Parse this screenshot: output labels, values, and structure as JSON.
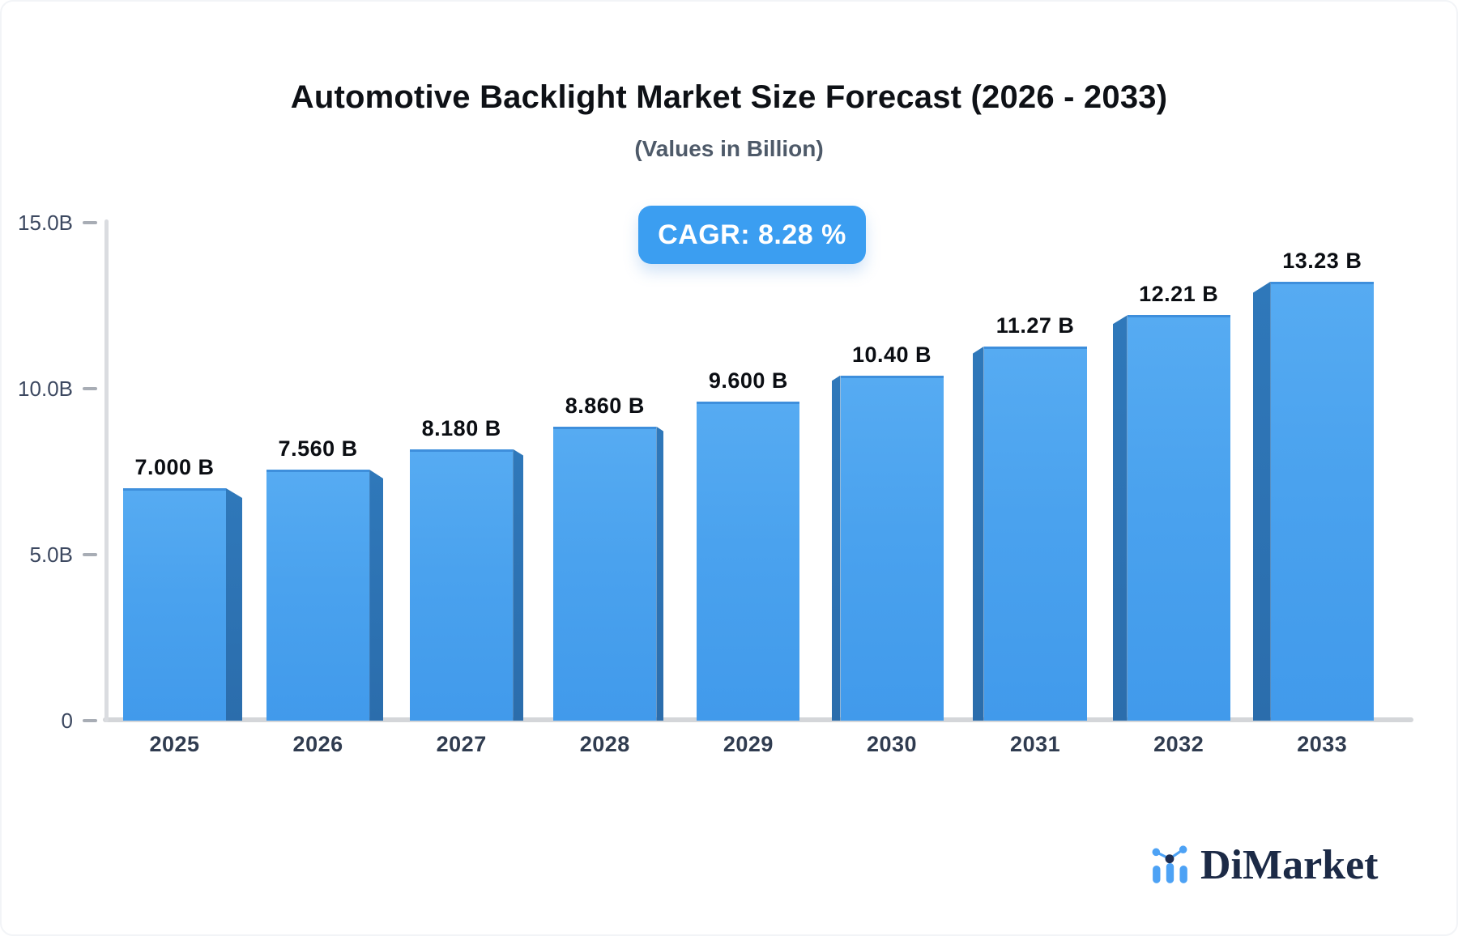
{
  "chart_data": {
    "type": "bar",
    "title": "Automotive Backlight Market Size Forecast (2026 - 2033)",
    "subtitle": "(Values in Billion)",
    "cagr_label": "CAGR: 8.28 %",
    "categories": [
      "2025",
      "2026",
      "2027",
      "2028",
      "2029",
      "2030",
      "2031",
      "2032",
      "2033"
    ],
    "values": [
      7.0,
      7.56,
      8.18,
      8.86,
      9.6,
      10.4,
      11.27,
      12.21,
      13.23
    ],
    "bar_labels": [
      "7.000 B",
      "7.560 B",
      "8.180 B",
      "8.860 B",
      "9.600 B",
      "10.40 B",
      "11.27 B",
      "12.21 B",
      "13.23 B"
    ],
    "yticks": [
      {
        "value": 15,
        "label": "15.0B"
      },
      {
        "value": 10,
        "label": "10.0B"
      },
      {
        "value": 5,
        "label": "5.0B"
      },
      {
        "value": 0,
        "label": "0"
      }
    ],
    "ylim": [
      0,
      15
    ],
    "xlabel": "",
    "ylabel": "",
    "grid": false,
    "legend": false,
    "bar_color": "#4aa2ee",
    "bar_side_color": "#2d73b4"
  },
  "colors": {
    "accent_blue": "#3b9ef1",
    "bar_front": "#4aa2ee",
    "bar_side": "#2d73b4",
    "axis_gray": "#d4d6d9",
    "text_dark": "#0e1116",
    "text_slate": "#3c4860",
    "logo_navy": "#1c2a46",
    "logo_blue": "#4da2f5"
  },
  "watermark": {
    "brand": "DiMarket",
    "icon": "bar-chart-logo-icon"
  }
}
